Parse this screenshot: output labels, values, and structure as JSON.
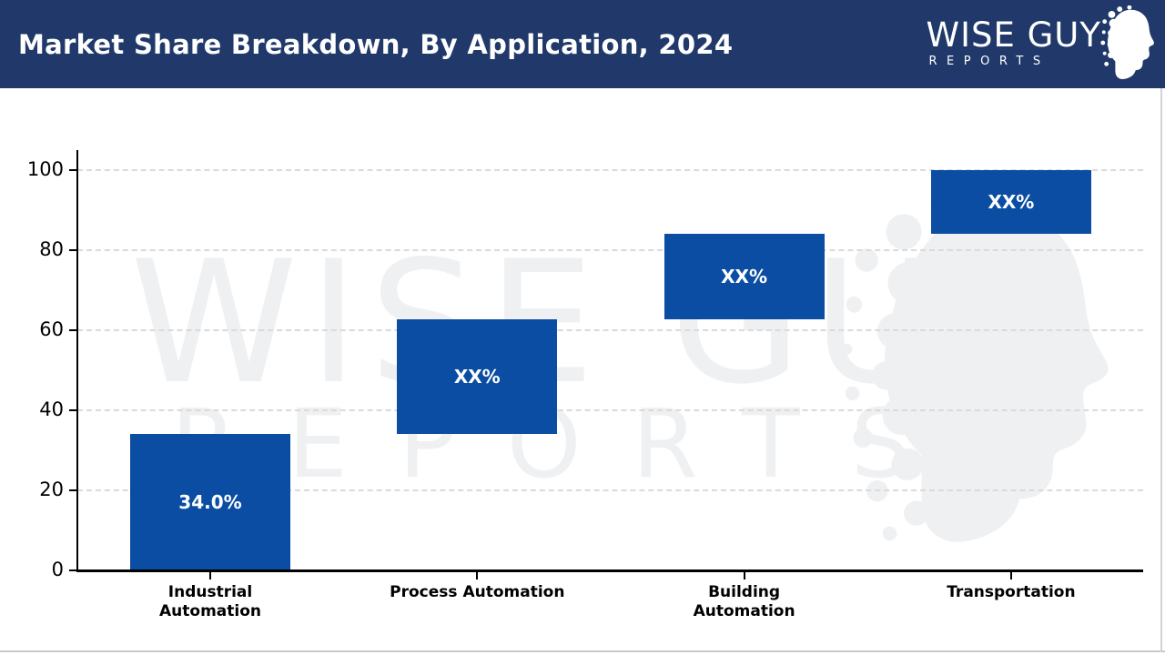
{
  "header": {
    "title": "Market Share Breakdown, By Application, 2024",
    "logo": {
      "wordmark": "WISE GUY",
      "subtext": "REPORTS"
    }
  },
  "watermark": {
    "line1": "WISE GUY",
    "line2": "REPORTS"
  },
  "colors": {
    "header_bg": "#20396a",
    "bar": "#0b4da2",
    "bar_label": "#ffffff",
    "gridline": "#dadada",
    "axis": "#000000",
    "watermark": "#eff0f2"
  },
  "chart_data": {
    "type": "bar",
    "subtype": "waterfall-stacked-breakdown",
    "title": "Market Share Breakdown, By Application, 2024",
    "xlabel": "",
    "ylabel": "",
    "ylim": [
      0,
      100
    ],
    "yticks": [
      0,
      20,
      40,
      60,
      80,
      100
    ],
    "grid": "horizontal dashed",
    "legend": "none",
    "categories": [
      "Industrial Automation",
      "Process Automation",
      "Building Automation",
      "Transportation"
    ],
    "category_label_lines": [
      [
        "Industrial",
        "Automation"
      ],
      [
        "Process Automation"
      ],
      [
        "Building",
        "Automation"
      ],
      [
        "Transportation"
      ]
    ],
    "segments": [
      {
        "category": "Industrial Automation",
        "start": 0,
        "end": 34.0,
        "value_est": 34.0,
        "label": "34.0%"
      },
      {
        "category": "Process Automation",
        "start": 34.0,
        "end": 62.7,
        "value_est": 28.7,
        "label": "XX%"
      },
      {
        "category": "Building Automation",
        "start": 62.7,
        "end": 84.1,
        "value_est": 21.4,
        "label": "XX%"
      },
      {
        "category": "Transportation",
        "start": 84.1,
        "end": 100.0,
        "value_est": 15.9,
        "label": "XX%"
      }
    ]
  }
}
